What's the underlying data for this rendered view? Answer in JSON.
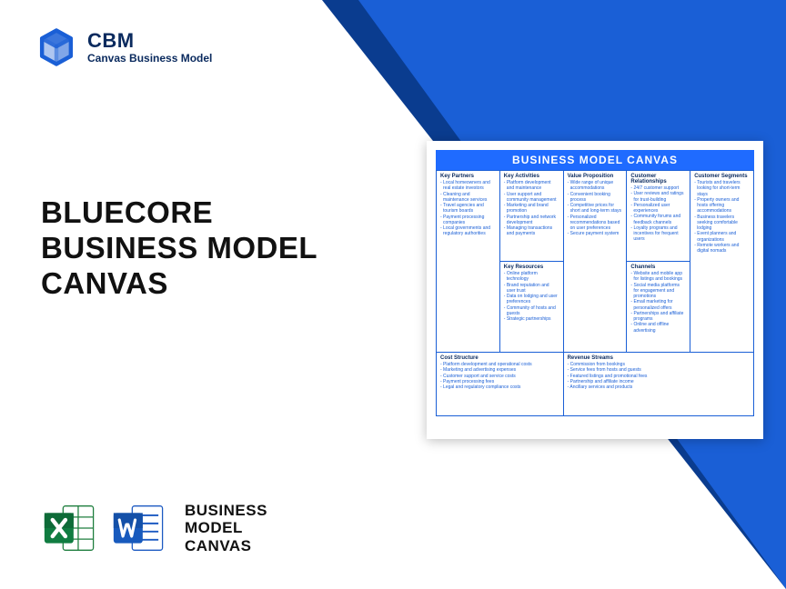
{
  "logo": {
    "abbr": "CBM",
    "sub": "Canvas Business Model"
  },
  "main_title": {
    "line1": "BLUECORE",
    "line2": "BUSINESS MODEL",
    "line3": "CANVAS"
  },
  "bottom_label": {
    "line1": "BUSINESS",
    "line2": "MODEL",
    "line3": "CANVAS"
  },
  "canvas": {
    "title": "BUSINESS MODEL CANVAS",
    "colors": {
      "header_bg": "#1f6bff",
      "border": "#1a5fd6",
      "heading_text": "#0a2a5e",
      "body_text": "#1a5fd6"
    },
    "cells": {
      "key_partners": {
        "head": "Key Partners",
        "items": [
          "- Local homeowners and real estate investors",
          "- Cleaning and maintenance services",
          "- Travel agencies and tourism boards",
          "- Payment processing companies",
          "- Local governments and regulatory authorities"
        ]
      },
      "key_activities": {
        "head": "Key Activities",
        "items": [
          "- Platform development and maintenance",
          "- User support and community management",
          "- Marketing and brand promotion",
          "- Partnership and network development",
          "- Managing transactions and payments"
        ]
      },
      "key_resources": {
        "head": "Key Resources",
        "items": [
          "- Online platform technology",
          "- Brand reputation and user trust",
          "- Data on lodging and user preferences",
          "- Community of hosts and guests",
          "- Strategic partnerships"
        ]
      },
      "value_proposition": {
        "head": "Value Proposition",
        "items": [
          "- Wide range of unique accommodations",
          "- Convenient booking process",
          "- Competitive prices for short and long-term stays",
          "- Personalized recommendations based on user preferences",
          "- Secure payment system"
        ]
      },
      "customer_relationships": {
        "head": "Customer Relationships",
        "items": [
          "- 24/7 customer support",
          "- User reviews and ratings for trust-building",
          "- Personalized user experiences",
          "- Community forums and feedback channels",
          "- Loyalty programs and incentives for frequent users"
        ]
      },
      "channels": {
        "head": "Channels",
        "items": [
          "- Website and mobile app for listings and bookings",
          "- Social media platforms for engagement and promotions",
          "- Email marketing for personalized offers",
          "- Partnerships and affiliate programs",
          "- Online and offline advertising"
        ]
      },
      "customer_segments": {
        "head": "Customer Segments",
        "items": [
          "- Tourists and travelers looking for short-term stays",
          "- Property owners and hosts offering accommodations",
          "- Business travelers seeking comfortable lodging",
          "- Event planners and organizations",
          "- Remote workers and digital nomads"
        ]
      },
      "cost_structure": {
        "head": "Cost Structure",
        "items": [
          "- Platform development and operational costs",
          "- Marketing and advertising expenses",
          "- Customer support and service costs",
          "- Payment processing fees",
          "- Legal and regulatory compliance costs"
        ]
      },
      "revenue_streams": {
        "head": "Revenue Streams",
        "items": [
          "- Commission from bookings",
          "- Service fees from hosts and guests",
          "- Featured listings and promotional fees",
          "- Partnership and affiliate income",
          "- Ancillary services and products"
        ]
      }
    }
  }
}
